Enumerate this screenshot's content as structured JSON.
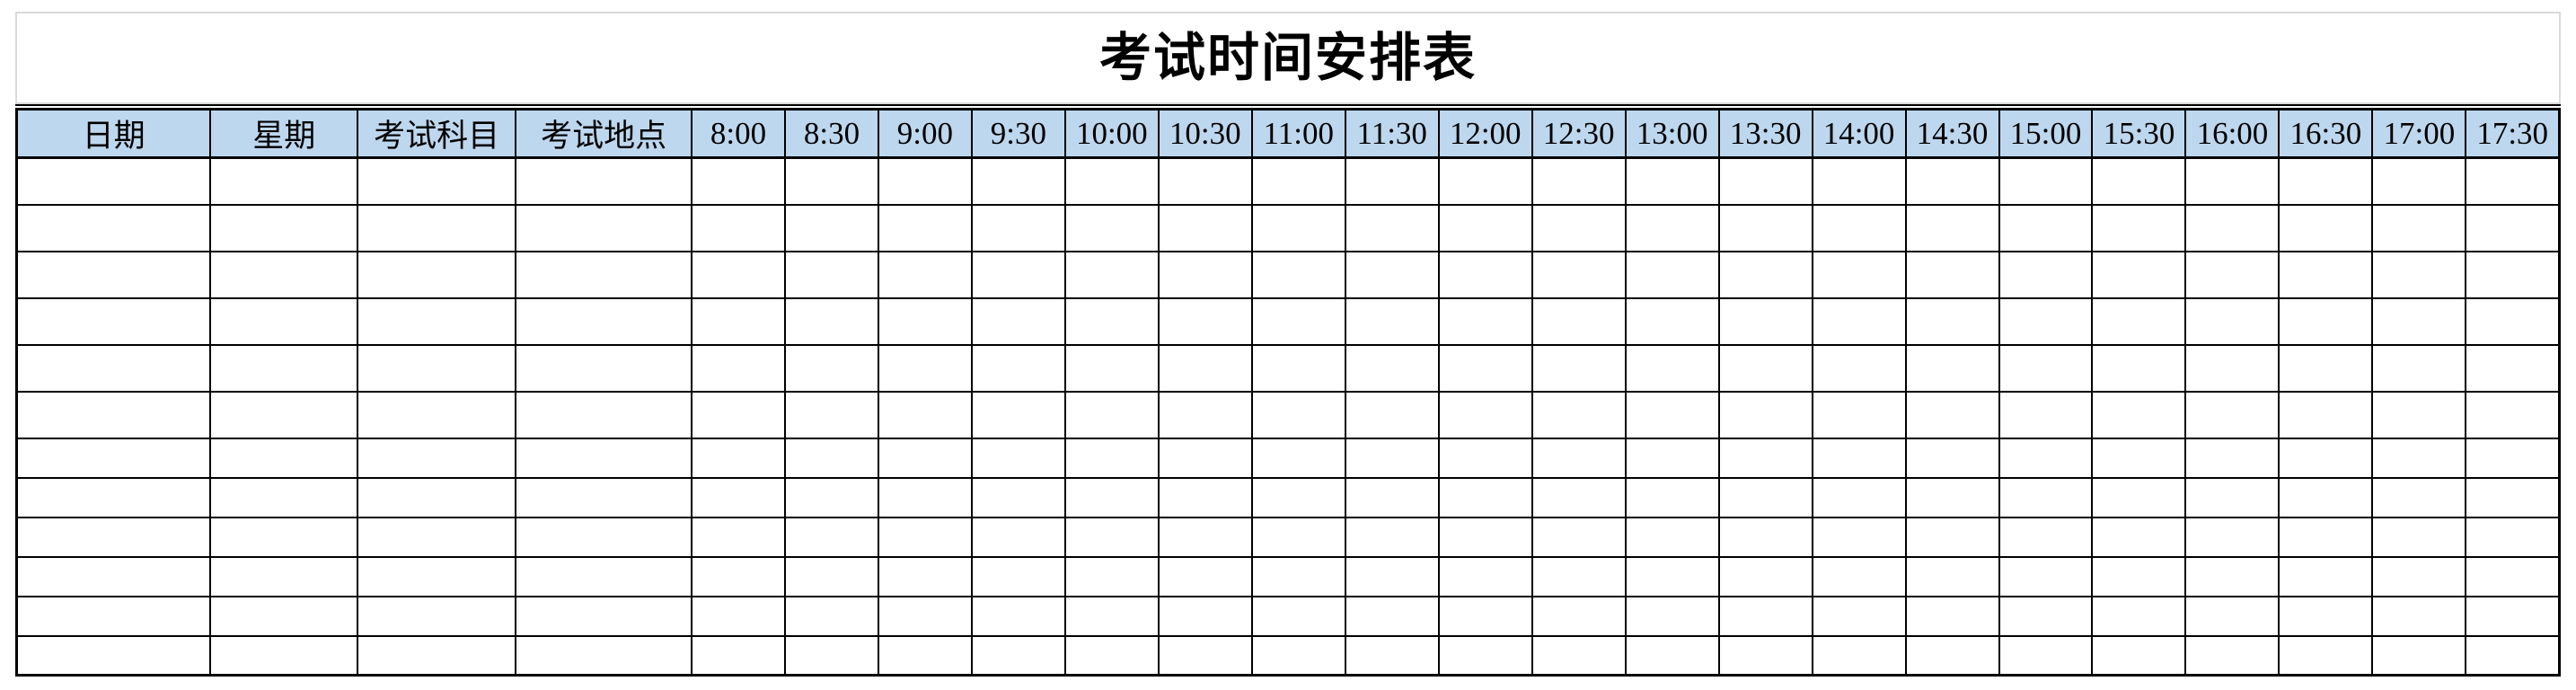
{
  "title": "考试时间安排表",
  "table": {
    "info_columns": [
      {
        "label": "日期",
        "name": "date"
      },
      {
        "label": "星期",
        "name": "weekday"
      },
      {
        "label": "考试科目",
        "name": "subject"
      },
      {
        "label": "考试地点",
        "name": "location"
      }
    ],
    "time_columns": [
      "8:00",
      "8:30",
      "9:00",
      "9:30",
      "10:00",
      "10:30",
      "11:00",
      "11:30",
      "12:00",
      "12:30",
      "13:00",
      "13:30",
      "14:00",
      "14:30",
      "15:00",
      "15:30",
      "16:00",
      "16:30",
      "17:00",
      "17:30"
    ],
    "row_count": 12,
    "cell_value_empty": ""
  },
  "colors": {
    "header_bg": "#bdd7ee",
    "grid_border": "#000000",
    "frame_border": "#d9d9d9"
  }
}
